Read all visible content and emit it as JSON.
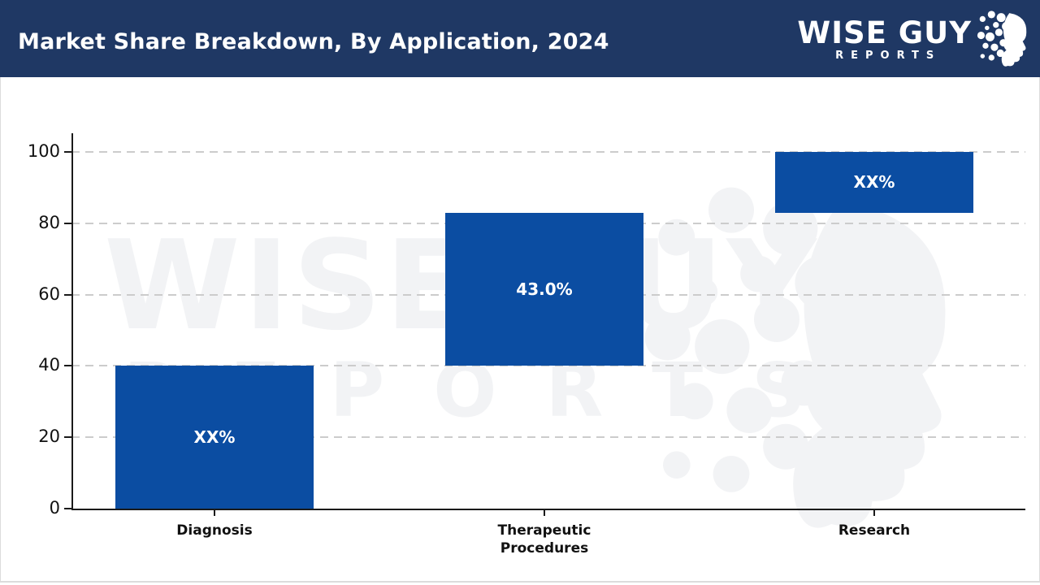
{
  "header": {
    "title": "Market Share Breakdown, By Application, 2024",
    "bg_color": "#1f3864",
    "logo_line1": "WISE GUY",
    "logo_line2": "REPORTS"
  },
  "watermark": {
    "line1": "WISE GUY",
    "line2": "R E P O R T S"
  },
  "chart_data": {
    "type": "bar",
    "subtype": "waterfall",
    "title": "Market Share Breakdown, By Application, 2024",
    "categories": [
      "Diagnosis",
      "Therapeutic Procedures",
      "Research"
    ],
    "segments": [
      {
        "category": "Diagnosis",
        "start": 0,
        "end": 40,
        "label": "XX%"
      },
      {
        "category": "Therapeutic Procedures",
        "start": 40,
        "end": 83,
        "label": "43.0%"
      },
      {
        "category": "Research",
        "start": 83,
        "end": 100,
        "label": "XX%"
      }
    ],
    "bar_labels": [
      "XX%",
      "43.0%",
      "XX%"
    ],
    "y_ticks": [
      0,
      20,
      40,
      60,
      80,
      100
    ],
    "ylim": [
      0,
      100
    ],
    "xlabel": "",
    "ylabel": "",
    "legend": "none",
    "grid": {
      "horizontal": true,
      "style": "dashed",
      "color": "#cccccc"
    },
    "bar_color": "#0b4da2",
    "axis_color": "#1a1a1a"
  }
}
